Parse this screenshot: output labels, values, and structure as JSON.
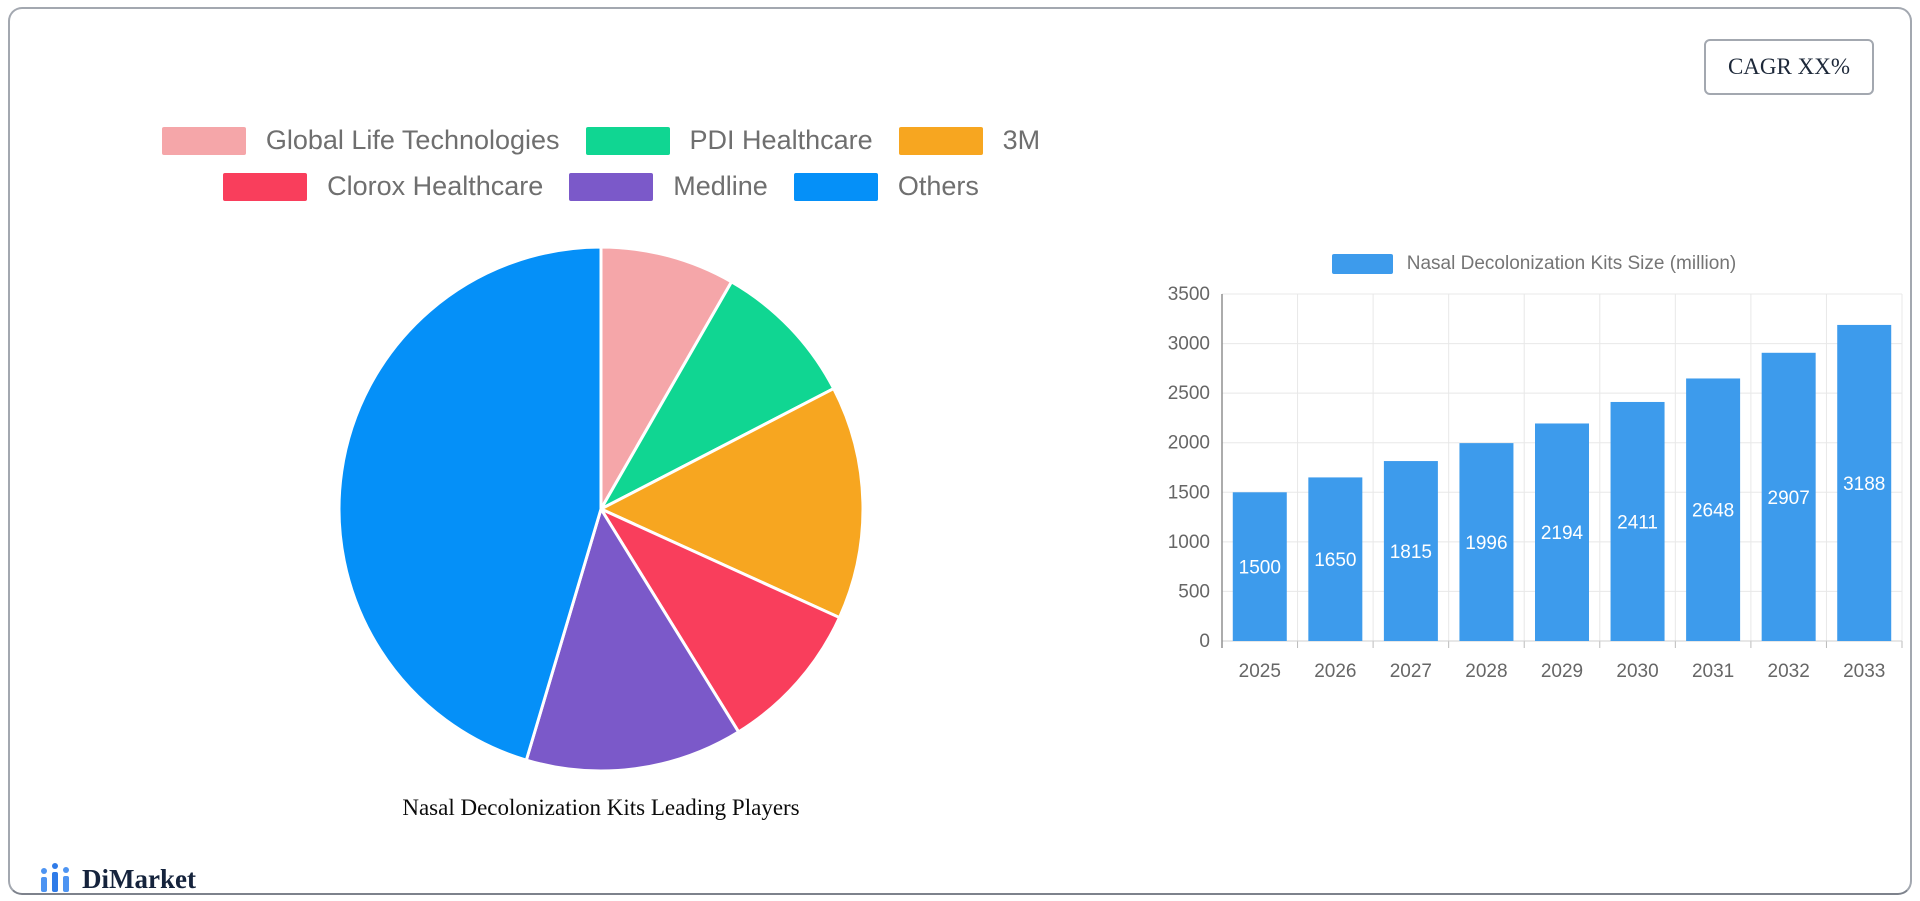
{
  "ui": {
    "cagr_badge": "CAGR XX%",
    "brand": "DiMarket"
  },
  "chart_data": [
    {
      "type": "pie",
      "title": "Nasal Decolonization Kits Leading Players",
      "start_angle_deg": -90,
      "direction": "clockwise",
      "legend_position": "top-two-rows",
      "slices": [
        {
          "label": "Global Life Technologies",
          "value": 8.3,
          "color": "#F5A6A9"
        },
        {
          "label": "PDI Healthcare",
          "value": 9.1,
          "color": "#10D692"
        },
        {
          "label": "3M",
          "value": 14.4,
          "color": "#F7A620"
        },
        {
          "label": "Clorox Healthcare",
          "value": 9.4,
          "color": "#F93E5C"
        },
        {
          "label": "Medline",
          "value": 13.4,
          "color": "#7B59C9"
        },
        {
          "label": "Others",
          "value": 45.4,
          "color": "#0590F8"
        }
      ]
    },
    {
      "type": "bar",
      "series_label": "Nasal Decolonization Kits Size (million)",
      "categories": [
        "2025",
        "2026",
        "2027",
        "2028",
        "2029",
        "2030",
        "2031",
        "2032",
        "2033"
      ],
      "values": [
        1500,
        1650,
        1815,
        1996,
        2194,
        2411,
        2648,
        2907,
        3188
      ],
      "y_ticks": [
        0,
        500,
        1000,
        1500,
        2000,
        2500,
        3000,
        3500
      ],
      "ylim": [
        0,
        3500
      ],
      "bar_color": "#3D9BEC",
      "grid": true,
      "legend_position": "top",
      "value_label_color": "#FFFFFF"
    }
  ]
}
